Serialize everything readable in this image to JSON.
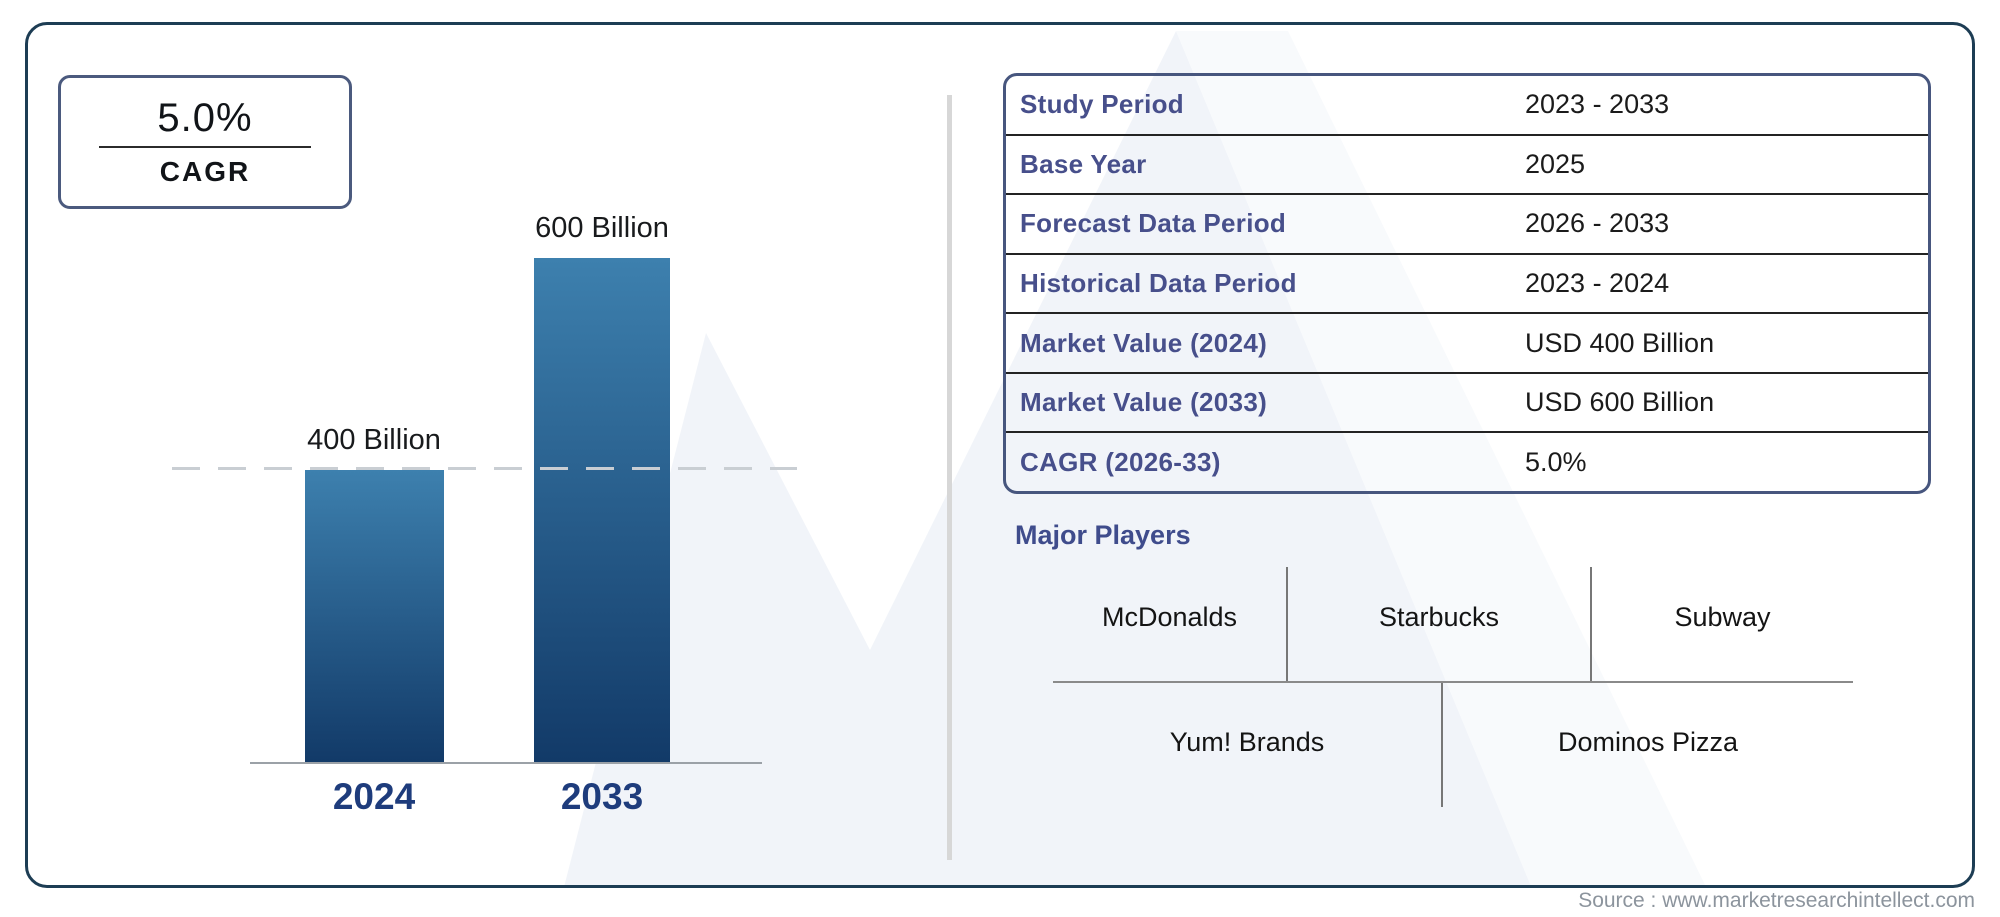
{
  "cagr_badge": {
    "value": "5.0%",
    "label": "CAGR"
  },
  "chart_data": {
    "type": "bar",
    "title": "",
    "categories": [
      "2024",
      "2033"
    ],
    "values": [
      400,
      600
    ],
    "unit": "USD Billion",
    "bar_labels": [
      "400 Billion",
      "600 Billion"
    ],
    "reference_line_value": 400,
    "ylim": [
      0,
      650
    ],
    "grid": false,
    "legend": "none",
    "bar_gradient_top": "#3d80ae",
    "bar_gradient_bottom": "#123a68"
  },
  "info_table": {
    "rows": [
      {
        "label": "Study Period",
        "value": "2023 - 2033"
      },
      {
        "label": "Base Year",
        "value": "2025"
      },
      {
        "label": "Forecast Data Period",
        "value": "2026 - 2033"
      },
      {
        "label": "Historical Data Period",
        "value": "2023 - 2024"
      },
      {
        "label": "Market Value (2024)",
        "value": "USD 400 Billion"
      },
      {
        "label": "Market Value (2033)",
        "value": "USD 600 Billion"
      },
      {
        "label": "CAGR (2026-33)",
        "value": "5.0%"
      }
    ]
  },
  "major_players": {
    "title": "Major Players",
    "row1": [
      "McDonalds",
      "Starbucks",
      "Subway"
    ],
    "row2": [
      "Yum! Brands",
      "Dominos Pizza"
    ]
  },
  "source": {
    "text": "Source : www.marketresearchintellect.com"
  },
  "colors": {
    "outer_border": "#1d3d54",
    "inner_border": "#47567e",
    "label_blue": "#474f8b",
    "year_blue": "#1e3c7c",
    "watermark": "#eff3f8"
  }
}
